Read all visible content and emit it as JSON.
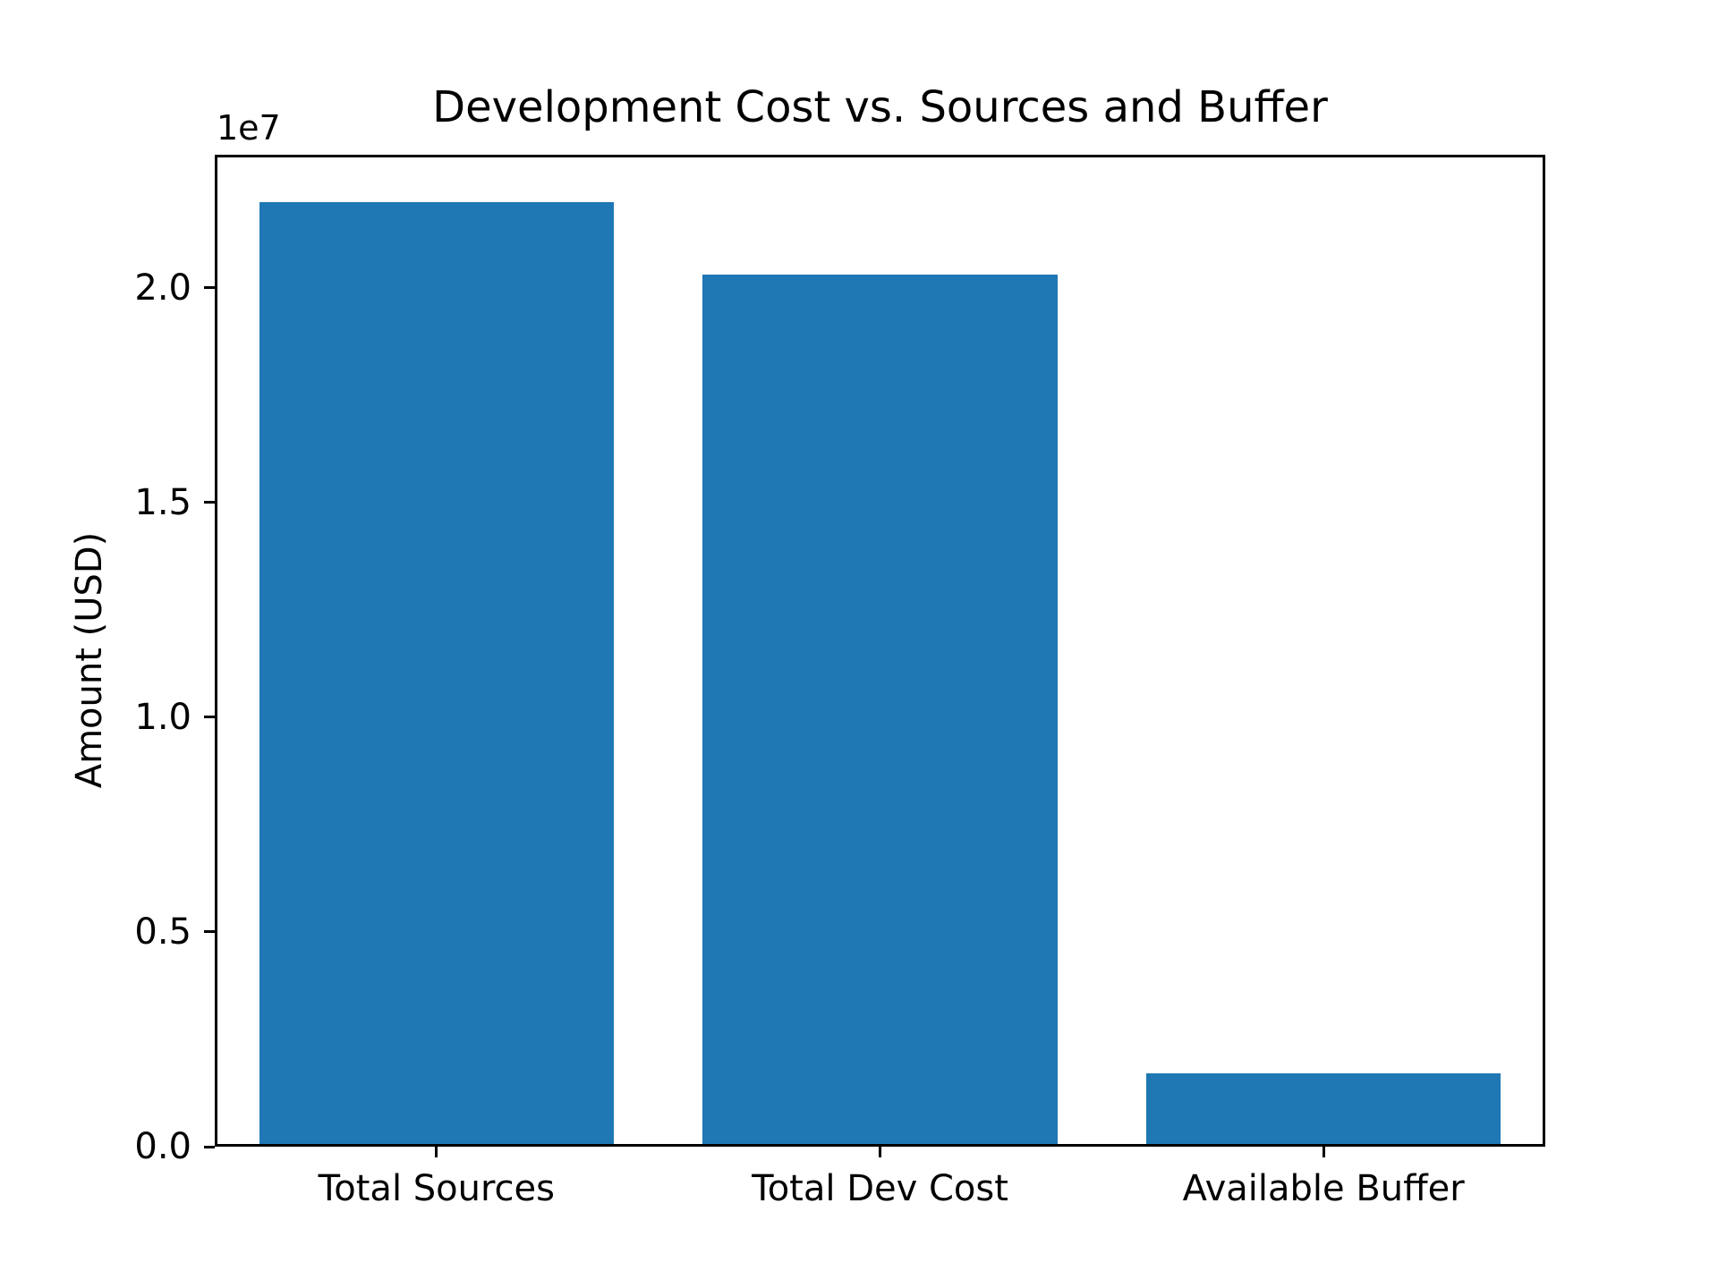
{
  "figure": {
    "background_color": "#ffffff",
    "text_color": "#000000"
  },
  "chart_data": {
    "type": "bar",
    "title": "Development Cost vs. Sources and Buffer",
    "xlabel": "",
    "ylabel": "Amount (USD)",
    "y_offset_label": "1e7",
    "categories": [
      "Total Sources",
      "Total Dev Cost",
      "Available Buffer"
    ],
    "values": [
      22000000,
      20300000,
      1700000
    ],
    "y_ticks": [
      "0.0",
      "0.5",
      "1.0",
      "1.5",
      "2.0"
    ],
    "y_tick_scale": 10000000,
    "ylim": [
      0,
      23100000
    ],
    "bar_color": "#1f77b4",
    "axis_color": "#000000",
    "grid": false,
    "legend_position": "none",
    "bar_width_fraction": 0.8
  }
}
